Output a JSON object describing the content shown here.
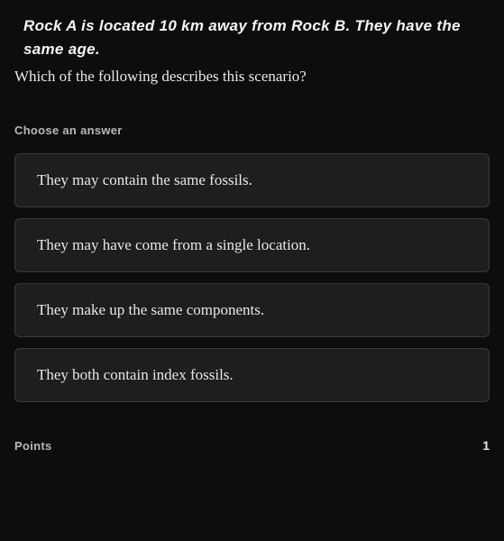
{
  "question": {
    "emphasis": "Rock A is located 10 km away from Rock B. They have the same age.",
    "text": "Which of the following describes this scenario?"
  },
  "prompt_label": "Choose an answer",
  "answers": [
    "They may contain the same fossils.",
    "They may have come from a single location.",
    "They make up the same components.",
    "They both contain index fossils."
  ],
  "points": {
    "label": "Points",
    "value": "1"
  },
  "colors": {
    "background": "#0d0d0d",
    "card_background": "#1e1e1e",
    "card_border": "#3a3a3a",
    "text_primary": "#e8e8e8",
    "text_secondary": "#b8b8b8"
  }
}
